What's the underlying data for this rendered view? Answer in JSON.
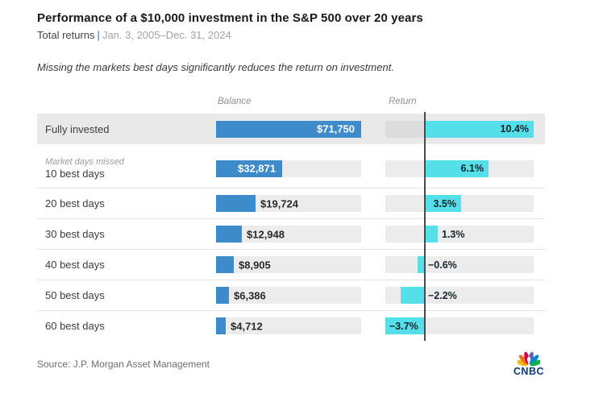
{
  "header": {
    "title": "Performance of a $10,000 investment in the S&P 500 over 20 years",
    "subtitle_left": "Total returns",
    "subtitle_separator": "|",
    "subtitle_right": "Jan. 3, 2005–Dec. 31, 2024",
    "note": "Missing the markets best days significantly reduces the return on investment."
  },
  "chart_data": {
    "type": "bar",
    "orientation": "horizontal",
    "column_headers": [
      "Balance",
      "Return"
    ],
    "balance_max": 71750,
    "return_range": [
      -3.7,
      10.4
    ],
    "rows": [
      {
        "label": "Fully invested",
        "sublabel": "",
        "balance": 71750,
        "balance_label": "$71,750",
        "return_pct": 10.4,
        "return_label": "10.4%",
        "highlight": true
      },
      {
        "label": "10 best days",
        "sublabel": "Market days missed",
        "balance": 32871,
        "balance_label": "$32,871",
        "return_pct": 6.1,
        "return_label": "6.1%",
        "highlight": false
      },
      {
        "label": "20 best days",
        "sublabel": "",
        "balance": 19724,
        "balance_label": "$19,724",
        "return_pct": 3.5,
        "return_label": "3.5%",
        "highlight": false
      },
      {
        "label": "30 best days",
        "sublabel": "",
        "balance": 12948,
        "balance_label": "$12,948",
        "return_pct": 1.3,
        "return_label": "1.3%",
        "highlight": false
      },
      {
        "label": "40 best days",
        "sublabel": "",
        "balance": 8905,
        "balance_label": "$8,905",
        "return_pct": -0.6,
        "return_label": "−0.6%",
        "highlight": false
      },
      {
        "label": "50 best days",
        "sublabel": "",
        "balance": 6386,
        "balance_label": "$6,386",
        "return_pct": -2.2,
        "return_label": "−2.2%",
        "highlight": false
      },
      {
        "label": "60 best days",
        "sublabel": "",
        "balance": 4712,
        "balance_label": "$4,712",
        "return_pct": -3.7,
        "return_label": "−3.7%",
        "highlight": false
      }
    ],
    "colors": {
      "balance_bar": "#3d8bca",
      "return_bar": "#54dfe9",
      "track": "#ececec",
      "track_highlight": "#dcdcdc",
      "row_highlight": "#e9e9e9",
      "zero_line": "#4a4a4a"
    },
    "legend": "none",
    "grid": "off"
  },
  "footer": {
    "source": "Source: J.P. Morgan Asset Management",
    "logo_text": "CNBC"
  }
}
